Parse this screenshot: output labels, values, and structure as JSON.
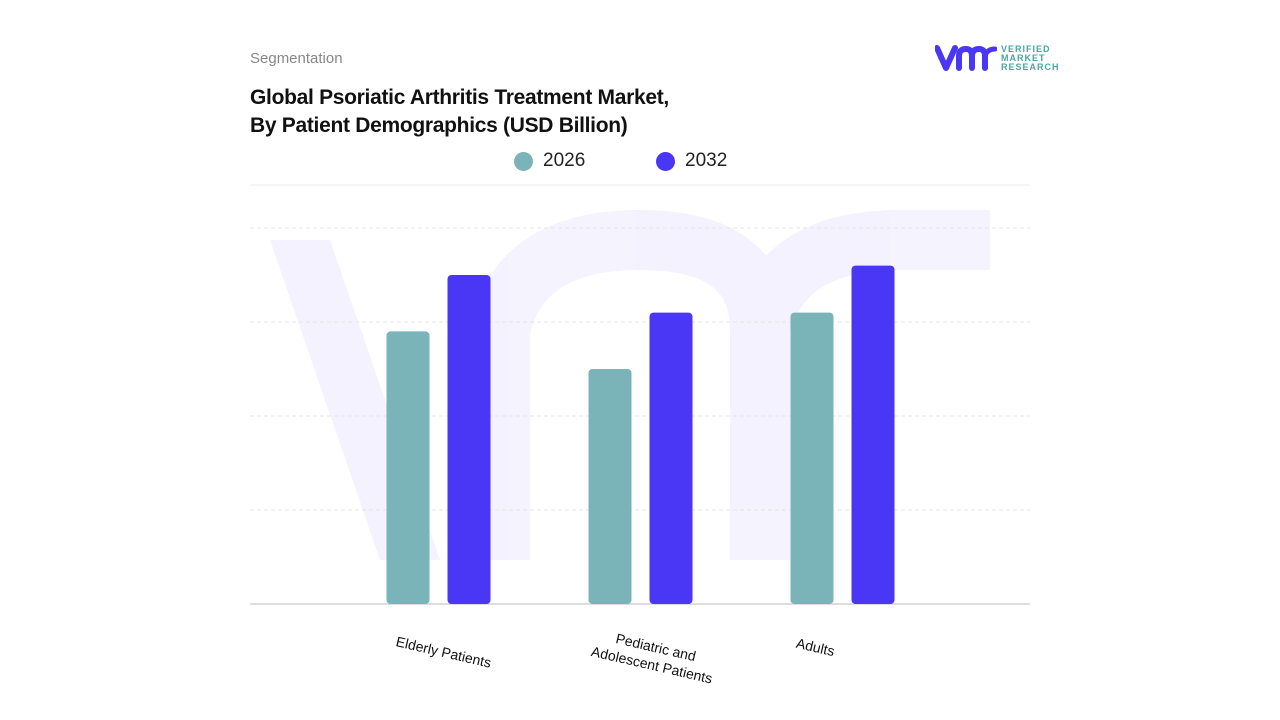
{
  "header": {
    "section": "Segmentation",
    "title_line1": "Global Psoriatic Arthritis Treatment Market,",
    "title_line2": "By Patient Demographics (USD Billion)"
  },
  "logo": {
    "mark": "vmr",
    "line1": "VERIFIED",
    "line2": "MARKET",
    "line3": "RESEARCH"
  },
  "chart_data": {
    "type": "bar",
    "title": "Global Psoriatic Arthritis Treatment Market, By Patient Demographics (USD Billion)",
    "categories": [
      "Elderly Patients",
      "Pediatric and Adolescent Patients",
      "Adults"
    ],
    "category_lines": [
      [
        "Elderly Patients"
      ],
      [
        "Pediatric and",
        "Adolescent Patients"
      ],
      [
        "Adults"
      ]
    ],
    "series": [
      {
        "name": "2026",
        "color": "#7ab4b8",
        "values": [
          2.9,
          2.5,
          3.1
        ]
      },
      {
        "name": "2032",
        "color": "#4a36f5",
        "values": [
          3.5,
          3.1,
          3.6
        ]
      }
    ],
    "ylim": [
      0,
      4
    ],
    "grid": true,
    "y_tick_labels_shown": false,
    "legend_position": "top"
  }
}
